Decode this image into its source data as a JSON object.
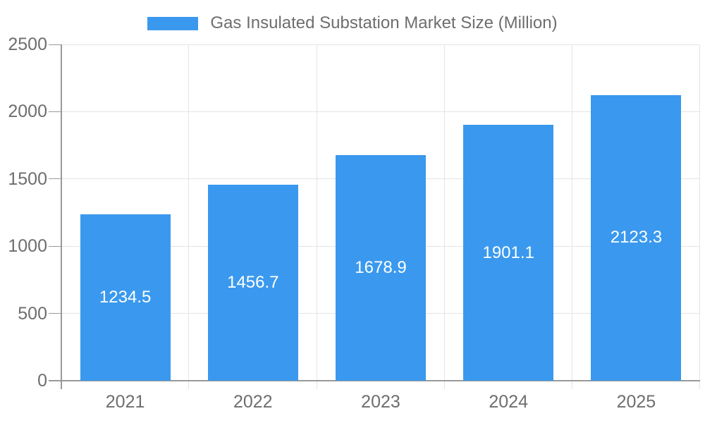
{
  "chart_data": {
    "type": "bar",
    "title": "Gas Insulated Substation Market Size (Million)",
    "categories": [
      "2021",
      "2022",
      "2023",
      "2024",
      "2025"
    ],
    "values": [
      1234.5,
      1456.7,
      1678.9,
      1901.1,
      2123.3
    ],
    "value_labels": [
      "1234.5",
      "1456.7",
      "1678.9",
      "1901.1",
      "2123.3"
    ],
    "xlabel": "",
    "ylabel": "",
    "ylim": [
      0,
      2500
    ],
    "yticks": [
      0,
      500,
      1000,
      1500,
      2000,
      2500
    ],
    "grid": true,
    "legend_position": "top",
    "colors": {
      "bar": "#3A99EE",
      "grid_line": "#E4E4E4",
      "axis_line": "#999999",
      "tick_label": "#6E6E6E",
      "legend_text": "#6E6E6E",
      "value_label": "#FFFFFF",
      "background": "#FFFFFF"
    }
  }
}
